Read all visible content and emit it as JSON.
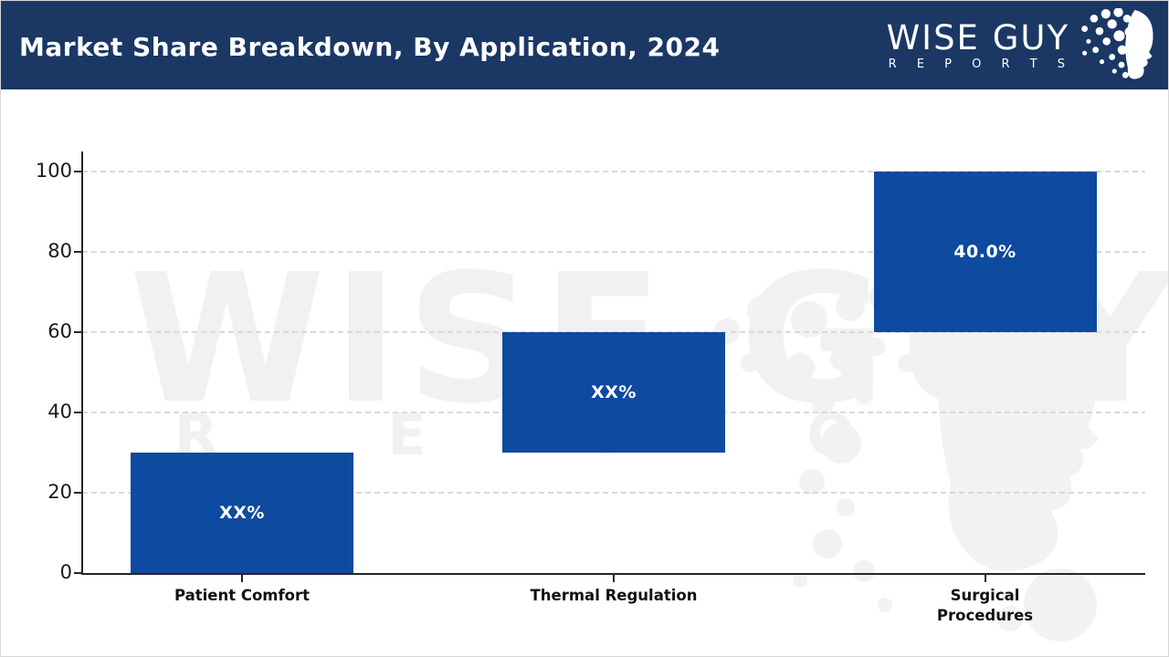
{
  "header": {
    "title": "Market Share Breakdown, By Application, 2024",
    "logo": {
      "brand_line1": "WISE GUY",
      "brand_line2": "R E P O R T S"
    }
  },
  "watermark": {
    "line1": "WISE GUY",
    "line2": "R E P O R T S"
  },
  "chart_data": {
    "type": "bar",
    "subtype": "waterfall-stacked-segments",
    "title": "Market Share Breakdown, By Application, 2024",
    "categories": [
      "Patient Comfort",
      "Thermal Regulation",
      "Surgical Procedures"
    ],
    "category_lines": [
      [
        "Patient Comfort"
      ],
      [
        "Thermal Regulation"
      ],
      [
        "Surgical",
        "Procedures"
      ]
    ],
    "segments": [
      {
        "category": "Patient Comfort",
        "start": 0,
        "end": 30,
        "label": "XX%"
      },
      {
        "category": "Thermal Regulation",
        "start": 30,
        "end": 60,
        "label": "XX%"
      },
      {
        "category": "Surgical Procedures",
        "start": 60,
        "end": 100,
        "label": "40.0%"
      }
    ],
    "yticks": [
      0,
      20,
      40,
      60,
      80,
      100
    ],
    "ylim": [
      0,
      105
    ],
    "xlabel": "",
    "ylabel": "",
    "legend": null,
    "grid": "horizontal-dashed",
    "bar_color": "#0d4aa0",
    "bar_label_color": "#ffffff"
  },
  "colors": {
    "header_bg": "#1b3764",
    "bar": "#0d4aa0",
    "axis": "#262626",
    "gridline": "#d9d9d9",
    "tick_label": "#1a1a1a",
    "watermark": "#f1f1f2",
    "page_bg": "#ffffff"
  }
}
